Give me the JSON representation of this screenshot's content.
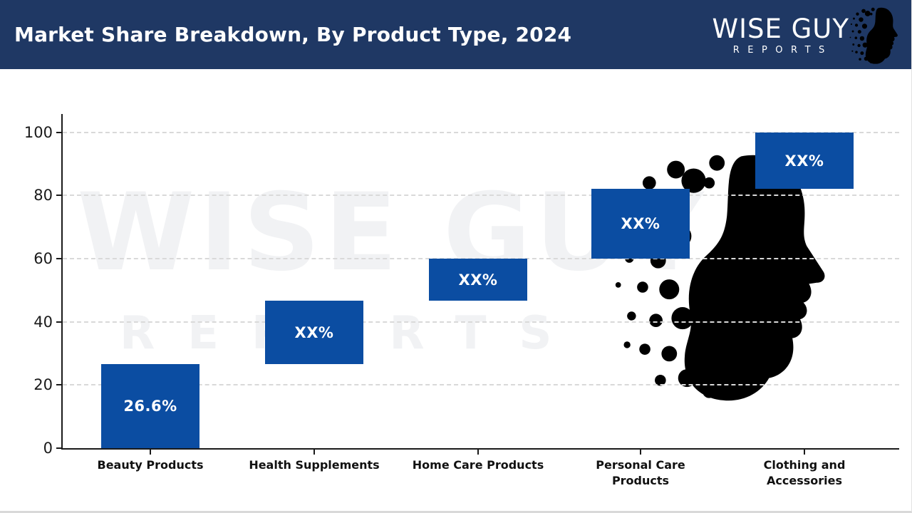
{
  "header": {
    "title": "Market Share Breakdown, By Product Type, 2024",
    "logo_line1": "WISE GUY",
    "logo_line2": "REPORTS",
    "bg_color": "#1f3864"
  },
  "watermark": {
    "line1": "WISE GUY",
    "line2": "REPORTS"
  },
  "chart_data": {
    "type": "bar",
    "subtype": "waterfall",
    "title": "Market Share Breakdown, By Product Type, 2024",
    "categories": [
      "Beauty Products",
      "Health Supplements",
      "Home Care Products",
      "Personal Care Products",
      "Clothing and Accessories"
    ],
    "categories_display": [
      "Beauty Products",
      "Health Supplements",
      "Home Care Products",
      "Personal Care\nProducts",
      "Clothing and\nAccessories"
    ],
    "segments": [
      {
        "category": "Beauty Products",
        "start": 0,
        "end": 26.6,
        "label": "26.6%"
      },
      {
        "category": "Health Supplements",
        "start": 26.6,
        "end": 46.6,
        "label": "XX%"
      },
      {
        "category": "Home Care Products",
        "start": 46.6,
        "end": 60,
        "label": "XX%"
      },
      {
        "category": "Personal Care Products",
        "start": 60,
        "end": 82,
        "label": "XX%"
      },
      {
        "category": "Clothing and Accessories",
        "start": 82,
        "end": 100,
        "label": "XX%"
      }
    ],
    "y_ticks": [
      "0",
      "20",
      "40",
      "60",
      "80",
      "100"
    ],
    "ylim": [
      0,
      100
    ],
    "bar_color": "#0b4da2",
    "grid": "dashed-horizontal",
    "legend": "none",
    "xlabel": "",
    "ylabel": ""
  }
}
